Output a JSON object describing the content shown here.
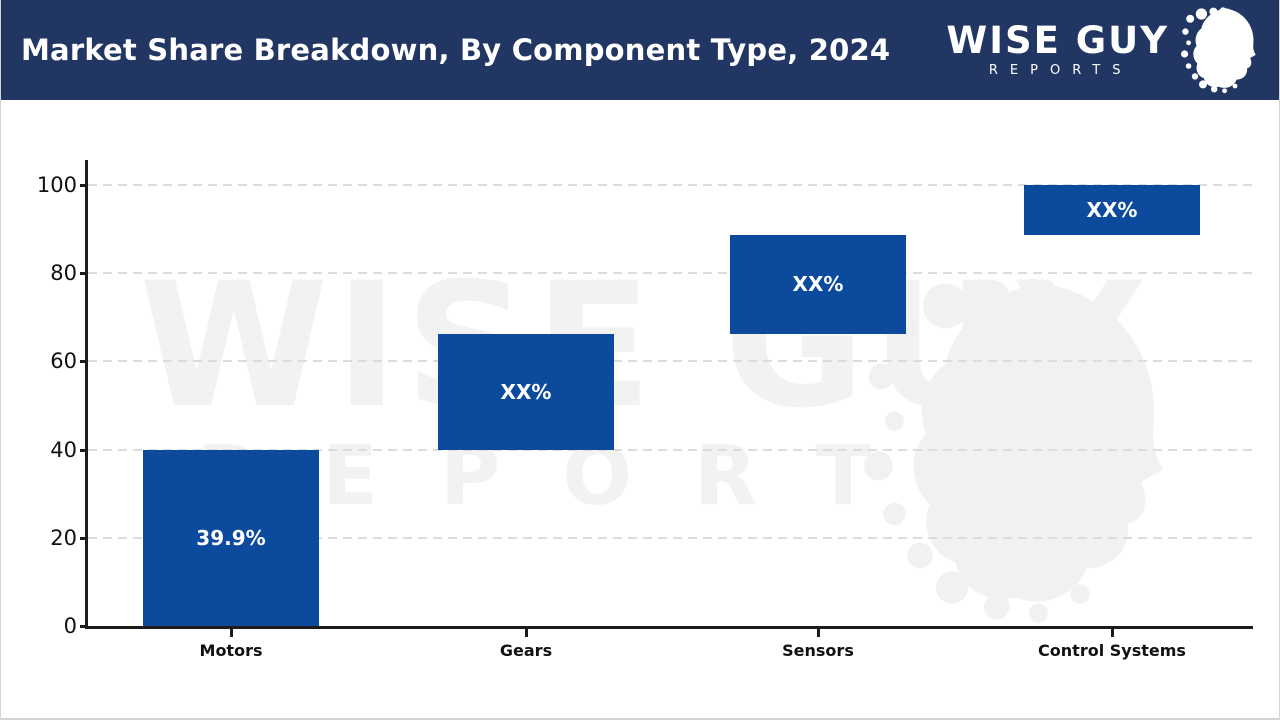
{
  "header": {
    "title": "Market Share Breakdown, By Component Type, 2024",
    "brand": {
      "line1": "WISE GUY",
      "line2": "REPORTS"
    },
    "background_color": "#213662",
    "text_color": "#FFFFFF"
  },
  "watermark": {
    "line1": "WISE GUY",
    "line2": "REPORTS"
  },
  "chart_data": {
    "type": "bar",
    "subtype": "waterfall",
    "title": "Market Share Breakdown, By Component Type, 2024",
    "xlabel": "",
    "ylabel": "",
    "categories": [
      "Motors",
      "Gears",
      "Sensors",
      "Control Systems"
    ],
    "segments": [
      {
        "category": "Motors",
        "start": 0,
        "end": 39.9,
        "label": "39.9%"
      },
      {
        "category": "Gears",
        "start": 39.9,
        "end": 66.3,
        "label": "XX%"
      },
      {
        "category": "Sensors",
        "start": 66.3,
        "end": 88.6,
        "label": "XX%"
      },
      {
        "category": "Control Systems",
        "start": 88.6,
        "end": 100,
        "label": "XX%"
      }
    ],
    "y_ticks": [
      0,
      20,
      40,
      60,
      80,
      100
    ],
    "ylim": [
      0,
      105
    ],
    "bar_color": "#0C4A9E",
    "grid": "dashed-horizontal",
    "gridline_color": "#DCDCDC",
    "legend": "none"
  }
}
